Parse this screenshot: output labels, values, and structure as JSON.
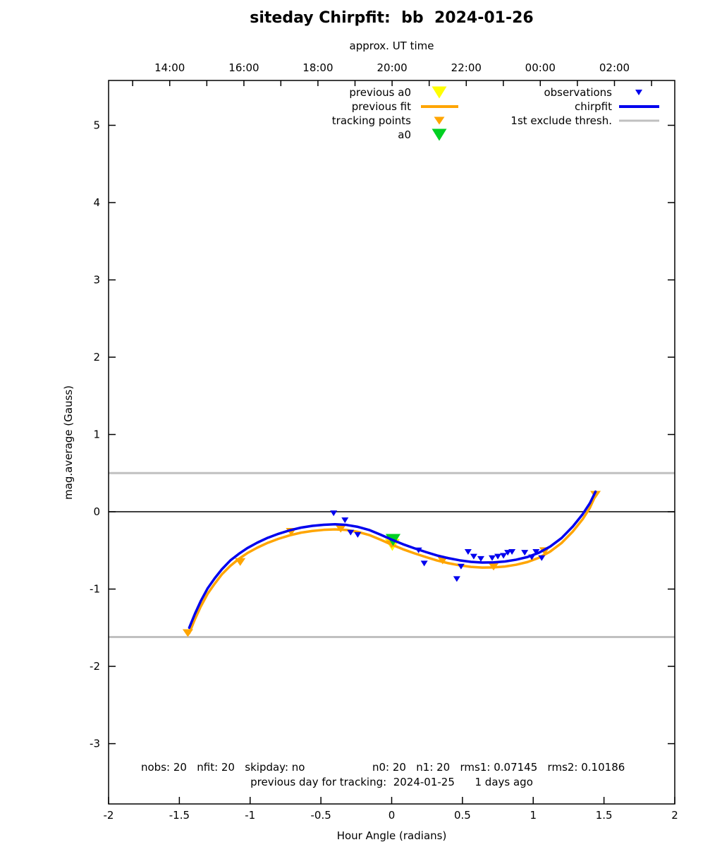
{
  "header": {
    "title": "siteday Chirpfit:  bb  2024-01-26"
  },
  "chart_data": {
    "type": "line",
    "title": "siteday Chirpfit:  bb  2024-01-26",
    "xlabel": "Hour Angle (radians)",
    "ylabel": "mag.average (Gauss)",
    "x2label": "approx. UT time",
    "xlim": [
      -2,
      2
    ],
    "ylim": [
      -3.78,
      5.58
    ],
    "grid": false,
    "colors": {
      "chirpfit": "#0000ee",
      "previous_fit": "#ffa500",
      "previous_a0": "#ffff00",
      "a0": "#00d022",
      "threshold": "#c0c0c0",
      "axis": "#000000"
    },
    "xticks": {
      "values": [
        -2,
        -1.5,
        -1,
        -0.5,
        0,
        0.5,
        1,
        1.5,
        2
      ],
      "labels": [
        "-2",
        "-1.5",
        "-1",
        "-0.5",
        "0",
        "0.5",
        "1",
        "1.5",
        "2"
      ]
    },
    "yticks": {
      "values": [
        -3,
        -2,
        -1,
        0,
        1,
        2,
        3,
        4,
        5
      ],
      "labels": [
        "-3",
        "-2",
        "-1",
        "0",
        "1",
        "2",
        "3",
        "4",
        "5"
      ]
    },
    "x2ticks": [
      {
        "x": -1.83,
        "label": ""
      },
      {
        "x": -1.568,
        "label": "14:00"
      },
      {
        "x": -1.306,
        "label": ""
      },
      {
        "x": -1.044,
        "label": "16:00"
      },
      {
        "x": -0.783,
        "label": ""
      },
      {
        "x": -0.521,
        "label": "18:00"
      },
      {
        "x": -0.259,
        "label": ""
      },
      {
        "x": 0.003,
        "label": "20:00"
      },
      {
        "x": 0.265,
        "label": ""
      },
      {
        "x": 0.527,
        "label": "22:00"
      },
      {
        "x": 0.789,
        "label": ""
      },
      {
        "x": 1.05,
        "label": "00:00"
      },
      {
        "x": 1.312,
        "label": ""
      },
      {
        "x": 1.574,
        "label": "02:00"
      },
      {
        "x": 1.836,
        "label": ""
      }
    ],
    "hlines": [
      {
        "y": 0.5,
        "color": "#c0c0c0",
        "width": 3,
        "name": "exclude-threshold-upper"
      },
      {
        "y": -1.62,
        "color": "#c0c0c0",
        "width": 3,
        "name": "exclude-threshold-lower"
      },
      {
        "y": 0.0,
        "color": "#000000",
        "width": 1.5,
        "name": "zero-line"
      }
    ],
    "series": [
      {
        "name": "previous a0",
        "kind": "scatter",
        "marker": "triangle-down",
        "size": "large",
        "color": "#ffff00",
        "points": [
          [
            0.005,
            -0.43
          ]
        ]
      },
      {
        "name": "previous fit",
        "kind": "line",
        "color": "#ffa500",
        "width": 3.5,
        "points": [
          [
            -1.43,
            -1.57
          ],
          [
            -1.39,
            -1.39
          ],
          [
            -1.35,
            -1.23
          ],
          [
            -1.3,
            -1.06
          ],
          [
            -1.25,
            -0.93
          ],
          [
            -1.2,
            -0.81
          ],
          [
            -1.14,
            -0.7
          ],
          [
            -1.08,
            -0.61
          ],
          [
            -1.02,
            -0.535
          ],
          [
            -0.95,
            -0.465
          ],
          [
            -0.88,
            -0.405
          ],
          [
            -0.8,
            -0.35
          ],
          [
            -0.72,
            -0.305
          ],
          [
            -0.64,
            -0.27
          ],
          [
            -0.56,
            -0.248
          ],
          [
            -0.48,
            -0.234
          ],
          [
            -0.4,
            -0.228
          ],
          [
            -0.32,
            -0.236
          ],
          [
            -0.24,
            -0.26
          ],
          [
            -0.16,
            -0.3
          ],
          [
            -0.08,
            -0.36
          ],
          [
            0.0,
            -0.425
          ],
          [
            0.08,
            -0.485
          ],
          [
            0.16,
            -0.537
          ],
          [
            0.24,
            -0.585
          ],
          [
            0.32,
            -0.63
          ],
          [
            0.4,
            -0.665
          ],
          [
            0.48,
            -0.693
          ],
          [
            0.56,
            -0.713
          ],
          [
            0.64,
            -0.722
          ],
          [
            0.72,
            -0.72
          ],
          [
            0.8,
            -0.708
          ],
          [
            0.88,
            -0.685
          ],
          [
            0.96,
            -0.65
          ],
          [
            1.04,
            -0.595
          ],
          [
            1.12,
            -0.515
          ],
          [
            1.2,
            -0.405
          ],
          [
            1.28,
            -0.255
          ],
          [
            1.35,
            -0.095
          ],
          [
            1.4,
            0.05
          ],
          [
            1.44,
            0.21
          ]
        ]
      },
      {
        "name": "tracking points",
        "kind": "scatter",
        "marker": "triangle-down",
        "size": "medium",
        "color": "#ffa500",
        "points": [
          [
            -1.44,
            -1.57
          ],
          [
            -1.07,
            -0.65
          ],
          [
            -0.71,
            -0.26
          ],
          [
            -0.36,
            -0.22
          ],
          [
            0.0,
            -0.42
          ],
          [
            0.36,
            -0.63
          ],
          [
            0.72,
            -0.71
          ],
          [
            1.08,
            -0.51
          ],
          [
            1.44,
            0.22
          ]
        ]
      },
      {
        "name": "a0",
        "kind": "scatter",
        "marker": "triangle-down",
        "size": "large",
        "color": "#00d022",
        "points": [
          [
            0.01,
            -0.365
          ]
        ]
      },
      {
        "name": "observations",
        "kind": "scatter",
        "marker": "triangle-down",
        "size": "small",
        "color": "#0000ee",
        "points": [
          [
            -0.41,
            -0.02
          ],
          [
            -0.33,
            -0.11
          ],
          [
            -0.29,
            -0.27
          ],
          [
            -0.24,
            -0.3
          ],
          [
            0.19,
            -0.5
          ],
          [
            0.23,
            -0.67
          ],
          [
            0.46,
            -0.87
          ],
          [
            0.49,
            -0.71
          ],
          [
            0.54,
            -0.52
          ],
          [
            0.58,
            -0.58
          ],
          [
            0.63,
            -0.61
          ],
          [
            0.71,
            -0.6
          ],
          [
            0.75,
            -0.58
          ],
          [
            0.79,
            -0.57
          ],
          [
            0.82,
            -0.53
          ],
          [
            0.85,
            -0.52
          ],
          [
            0.94,
            -0.53
          ],
          [
            0.99,
            -0.59
          ],
          [
            1.02,
            -0.52
          ],
          [
            1.06,
            -0.6
          ]
        ]
      },
      {
        "name": "chirpfit",
        "kind": "line",
        "color": "#0000ee",
        "width": 3.5,
        "points": [
          [
            -1.43,
            -1.5
          ],
          [
            -1.39,
            -1.32
          ],
          [
            -1.35,
            -1.16
          ],
          [
            -1.3,
            -0.99
          ],
          [
            -1.25,
            -0.86
          ],
          [
            -1.2,
            -0.745
          ],
          [
            -1.14,
            -0.63
          ],
          [
            -1.08,
            -0.545
          ],
          [
            -1.02,
            -0.47
          ],
          [
            -0.95,
            -0.4
          ],
          [
            -0.88,
            -0.34
          ],
          [
            -0.8,
            -0.285
          ],
          [
            -0.72,
            -0.24
          ],
          [
            -0.64,
            -0.205
          ],
          [
            -0.56,
            -0.182
          ],
          [
            -0.48,
            -0.168
          ],
          [
            -0.4,
            -0.162
          ],
          [
            -0.32,
            -0.17
          ],
          [
            -0.24,
            -0.195
          ],
          [
            -0.16,
            -0.235
          ],
          [
            -0.08,
            -0.295
          ],
          [
            0.0,
            -0.36
          ],
          [
            0.08,
            -0.42
          ],
          [
            0.16,
            -0.472
          ],
          [
            0.24,
            -0.52
          ],
          [
            0.32,
            -0.565
          ],
          [
            0.4,
            -0.6
          ],
          [
            0.48,
            -0.628
          ],
          [
            0.56,
            -0.648
          ],
          [
            0.64,
            -0.657
          ],
          [
            0.72,
            -0.655
          ],
          [
            0.8,
            -0.643
          ],
          [
            0.88,
            -0.62
          ],
          [
            0.96,
            -0.585
          ],
          [
            1.04,
            -0.53
          ],
          [
            1.12,
            -0.45
          ],
          [
            1.2,
            -0.34
          ],
          [
            1.28,
            -0.19
          ],
          [
            1.35,
            -0.03
          ],
          [
            1.4,
            0.11
          ],
          [
            1.44,
            0.26
          ]
        ]
      }
    ],
    "legend": {
      "position": "top-inside",
      "entries": [
        {
          "label": "previous a0",
          "glyph": "triangle",
          "size": "large",
          "color": "#ffff00",
          "column": 0
        },
        {
          "label": "previous fit",
          "glyph": "line",
          "width": 4,
          "color": "#ffa500",
          "column": 0
        },
        {
          "label": "tracking points",
          "glyph": "triangle",
          "size": "medium",
          "color": "#ffa500",
          "column": 0
        },
        {
          "label": "a0",
          "glyph": "triangle",
          "size": "large",
          "color": "#00d022",
          "column": 0
        },
        {
          "label": "observations",
          "glyph": "triangle",
          "size": "small",
          "color": "#0000ee",
          "column": 1
        },
        {
          "label": "chirpfit",
          "glyph": "line",
          "width": 4,
          "color": "#0000ee",
          "column": 1
        },
        {
          "label": "1st exclude thresh.",
          "glyph": "line",
          "width": 3,
          "color": "#c0c0c0",
          "column": 1
        }
      ]
    },
    "annotations": {
      "stats_line1_left": "nobs: 20   nfit: 20   skipday: no",
      "stats_line1_right": "n0: 20   n1: 20   rms1: 0.07145   rms2: 0.10186",
      "stats_line2": "previous day for tracking:  2024-01-25      1 days ago"
    }
  }
}
